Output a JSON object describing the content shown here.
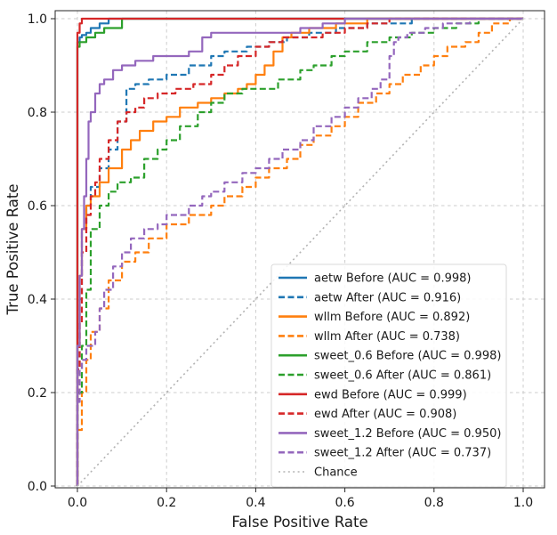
{
  "chart_data": {
    "type": "line",
    "title": "",
    "xlabel": "False Positive Rate",
    "ylabel": "True Positive Rate",
    "xlim": [
      0.0,
      1.0
    ],
    "ylim": [
      0.0,
      1.0
    ],
    "xticks": [
      0.0,
      0.2,
      0.4,
      0.6,
      0.8,
      1.0
    ],
    "yticks": [
      0.0,
      0.2,
      0.4,
      0.6,
      0.8,
      1.0
    ],
    "grid": true,
    "grid_style": "dashed",
    "legend_position": "lower right",
    "colors": {
      "aetw": "#1f77b4",
      "wllm": "#ff7f0e",
      "sweet_0.6": "#2ca02c",
      "ewd": "#d62728",
      "sweet_1.2": "#9467bd",
      "chance": "#b3b3b3"
    },
    "series": [
      {
        "id": "aetw-before",
        "name": "aetw Before (AUC = 0.998)",
        "auc": 0.998,
        "color": "#1f77b4",
        "style": "solid",
        "interp": "step",
        "x": [
          0,
          0,
          0.005,
          0.01,
          0.02,
          0.03,
          0.05,
          0.07,
          0.14,
          1
        ],
        "y": [
          0,
          0.9,
          0.95,
          0.96,
          0.965,
          0.97,
          0.98,
          0.99,
          1,
          1
        ]
      },
      {
        "id": "aetw-after",
        "name": "aetw After (AUC = 0.916)",
        "auc": 0.916,
        "color": "#1f77b4",
        "style": "dashed",
        "interp": "step",
        "x": [
          0,
          0.005,
          0.01,
          0.02,
          0.03,
          0.05,
          0.07,
          0.09,
          0.11,
          0.13,
          0.16,
          0.2,
          0.25,
          0.3,
          0.33,
          0.38,
          0.43,
          0.47,
          0.52,
          0.58,
          0.65,
          0.75,
          0.85,
          1
        ],
        "y": [
          0,
          0.25,
          0.4,
          0.55,
          0.6,
          0.64,
          0.68,
          0.72,
          0.78,
          0.85,
          0.86,
          0.87,
          0.88,
          0.9,
          0.92,
          0.93,
          0.94,
          0.95,
          0.96,
          0.97,
          0.98,
          0.99,
          1,
          1
        ]
      },
      {
        "id": "wllm-before",
        "name": "wllm Before (AUC = 0.892)",
        "auc": 0.892,
        "color": "#ff7f0e",
        "style": "solid",
        "interp": "step",
        "x": [
          0,
          0.005,
          0.01,
          0.02,
          0.03,
          0.05,
          0.07,
          0.1,
          0.12,
          0.14,
          0.17,
          0.2,
          0.23,
          0.27,
          0.3,
          0.33,
          0.36,
          0.38,
          0.4,
          0.42,
          0.44,
          0.46,
          0.48,
          0.52,
          0.58,
          0.65,
          0.72,
          1
        ],
        "y": [
          0,
          0.3,
          0.45,
          0.55,
          0.6,
          0.62,
          0.65,
          0.68,
          0.72,
          0.74,
          0.76,
          0.78,
          0.79,
          0.81,
          0.82,
          0.83,
          0.84,
          0.85,
          0.86,
          0.88,
          0.9,
          0.93,
          0.96,
          0.97,
          0.98,
          0.99,
          1,
          1
        ]
      },
      {
        "id": "wllm-after",
        "name": "wllm After (AUC = 0.738)",
        "auc": 0.738,
        "color": "#ff7f0e",
        "style": "dashed",
        "interp": "step",
        "x": [
          0,
          0.01,
          0.02,
          0.03,
          0.05,
          0.07,
          0.1,
          0.13,
          0.16,
          0.2,
          0.25,
          0.3,
          0.33,
          0.37,
          0.4,
          0.43,
          0.47,
          0.5,
          0.53,
          0.57,
          0.6,
          0.63,
          0.67,
          0.7,
          0.73,
          0.77,
          0.8,
          0.83,
          0.87,
          0.9,
          0.93,
          0.97,
          1
        ],
        "y": [
          0,
          0.12,
          0.2,
          0.27,
          0.33,
          0.38,
          0.44,
          0.48,
          0.5,
          0.53,
          0.56,
          0.58,
          0.6,
          0.62,
          0.64,
          0.66,
          0.68,
          0.7,
          0.73,
          0.75,
          0.77,
          0.79,
          0.82,
          0.84,
          0.86,
          0.88,
          0.9,
          0.92,
          0.94,
          0.95,
          0.97,
          0.99,
          1
        ]
      },
      {
        "id": "sweet06-before",
        "name": "sweet_0.6 Before (AUC = 0.998)",
        "auc": 0.998,
        "color": "#2ca02c",
        "style": "solid",
        "interp": "step",
        "x": [
          0,
          0,
          0.005,
          0.02,
          0.04,
          0.06,
          0.1,
          0.16,
          1
        ],
        "y": [
          0,
          0.88,
          0.94,
          0.95,
          0.96,
          0.97,
          0.98,
          1,
          1
        ]
      },
      {
        "id": "sweet06-after",
        "name": "sweet_0.6 After (AUC = 0.861)",
        "auc": 0.861,
        "color": "#2ca02c",
        "style": "dashed",
        "interp": "step",
        "x": [
          0,
          0.01,
          0.02,
          0.03,
          0.05,
          0.07,
          0.09,
          0.12,
          0.15,
          0.18,
          0.2,
          0.23,
          0.27,
          0.3,
          0.33,
          0.37,
          0.4,
          0.45,
          0.5,
          0.53,
          0.57,
          0.6,
          0.65,
          0.7,
          0.75,
          0.8,
          0.85,
          0.9,
          0.95,
          1
        ],
        "y": [
          0,
          0.2,
          0.3,
          0.42,
          0.55,
          0.6,
          0.63,
          0.65,
          0.66,
          0.7,
          0.72,
          0.74,
          0.77,
          0.8,
          0.82,
          0.84,
          0.85,
          0.85,
          0.87,
          0.89,
          0.9,
          0.92,
          0.93,
          0.95,
          0.96,
          0.97,
          0.98,
          0.99,
          1,
          1
        ]
      },
      {
        "id": "ewd-before",
        "name": "ewd Before (AUC = 0.999)",
        "auc": 0.999,
        "color": "#d62728",
        "style": "solid",
        "interp": "step",
        "x": [
          0,
          0,
          0.005,
          0.01,
          0.02,
          1
        ],
        "y": [
          0,
          0.95,
          0.97,
          0.99,
          1,
          1
        ]
      },
      {
        "id": "ewd-after",
        "name": "ewd After (AUC = 0.908)",
        "auc": 0.908,
        "color": "#d62728",
        "style": "dashed",
        "interp": "step",
        "x": [
          0,
          0.005,
          0.01,
          0.02,
          0.03,
          0.04,
          0.05,
          0.07,
          0.09,
          0.11,
          0.13,
          0.15,
          0.18,
          0.22,
          0.26,
          0.3,
          0.33,
          0.36,
          0.4,
          0.43,
          0.46,
          0.5,
          0.55,
          0.6,
          0.65,
          0.7,
          0.73,
          1
        ],
        "y": [
          0,
          0.25,
          0.35,
          0.5,
          0.58,
          0.62,
          0.65,
          0.7,
          0.74,
          0.78,
          0.8,
          0.81,
          0.83,
          0.84,
          0.85,
          0.86,
          0.88,
          0.9,
          0.92,
          0.94,
          0.95,
          0.96,
          0.96,
          0.97,
          0.98,
          0.99,
          1,
          1
        ]
      },
      {
        "id": "sweet12-before",
        "name": "sweet_1.2 Before (AUC = 0.950)",
        "auc": 0.95,
        "color": "#9467bd",
        "style": "solid",
        "interp": "step",
        "x": [
          0,
          0.005,
          0.01,
          0.015,
          0.02,
          0.025,
          0.03,
          0.04,
          0.05,
          0.06,
          0.08,
          0.1,
          0.13,
          0.17,
          0.2,
          0.25,
          0.28,
          0.3,
          0.32,
          0.5,
          0.55,
          0.6,
          0.65,
          1
        ],
        "y": [
          0,
          0.3,
          0.45,
          0.55,
          0.62,
          0.7,
          0.78,
          0.8,
          0.84,
          0.86,
          0.87,
          0.89,
          0.9,
          0.91,
          0.92,
          0.92,
          0.93,
          0.96,
          0.97,
          0.97,
          0.98,
          0.99,
          1,
          1
        ]
      },
      {
        "id": "sweet12-after",
        "name": "sweet_1.2 After (AUC = 0.737)",
        "auc": 0.737,
        "color": "#9467bd",
        "style": "dashed",
        "interp": "step",
        "x": [
          0,
          0.005,
          0.01,
          0.02,
          0.04,
          0.05,
          0.06,
          0.08,
          0.1,
          0.12,
          0.15,
          0.18,
          0.2,
          0.25,
          0.28,
          0.3,
          0.33,
          0.37,
          0.4,
          0.43,
          0.46,
          0.5,
          0.53,
          0.57,
          0.6,
          0.63,
          0.66,
          0.68,
          0.7,
          0.71,
          0.72,
          0.74,
          0.78,
          0.82,
          0.88,
          0.93,
          1
        ],
        "y": [
          0,
          0.18,
          0.25,
          0.27,
          0.3,
          0.33,
          0.38,
          0.42,
          0.47,
          0.5,
          0.53,
          0.55,
          0.56,
          0.58,
          0.6,
          0.62,
          0.63,
          0.65,
          0.67,
          0.68,
          0.7,
          0.72,
          0.74,
          0.77,
          0.79,
          0.81,
          0.83,
          0.85,
          0.87,
          0.92,
          0.95,
          0.96,
          0.97,
          0.98,
          0.99,
          1,
          1
        ]
      },
      {
        "id": "chance",
        "name": "Chance",
        "auc": 0.5,
        "color": "#b3b3b3",
        "style": "dotted",
        "interp": "linear",
        "x": [
          0,
          1
        ],
        "y": [
          0,
          1
        ]
      }
    ]
  }
}
